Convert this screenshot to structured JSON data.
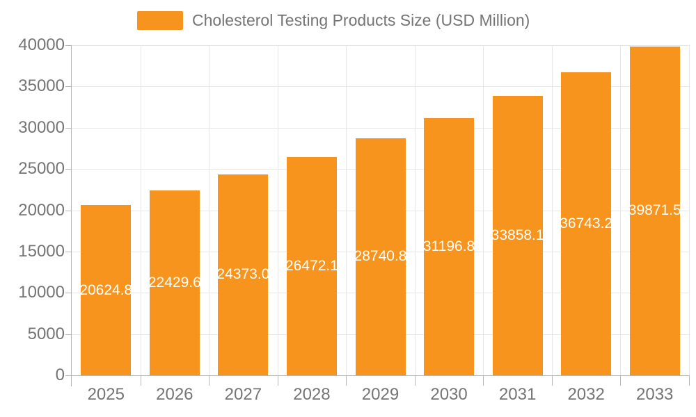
{
  "chart_data": {
    "type": "bar",
    "title": "Cholesterol Testing Products Size (USD Million)",
    "categories": [
      "2025",
      "2026",
      "2027",
      "2028",
      "2029",
      "2030",
      "2031",
      "2032",
      "2033"
    ],
    "values": [
      20624.8,
      22429.6,
      24373.0,
      26472.1,
      28740.8,
      31196.8,
      33858.1,
      36743.2,
      39871.5
    ],
    "bar_labels": [
      "20624.8",
      "22429.6",
      "24373.0",
      "26472.1",
      "28740.8",
      "31196.8",
      "33858.1",
      "36743.2",
      "39871.5"
    ],
    "xlabel": "",
    "ylabel": "",
    "ylim": [
      0,
      40000
    ],
    "yticks": [
      0,
      5000,
      10000,
      15000,
      20000,
      25000,
      30000,
      35000,
      40000
    ],
    "grid": true,
    "legend_position": "top",
    "colors": {
      "bar": "#F7941E",
      "axis_text": "#757575",
      "axis_line": "#B6B6B6",
      "gridline": "#E7E7E7",
      "bar_label_text": "#FFFFFF",
      "background": "#FFFFFF"
    }
  }
}
